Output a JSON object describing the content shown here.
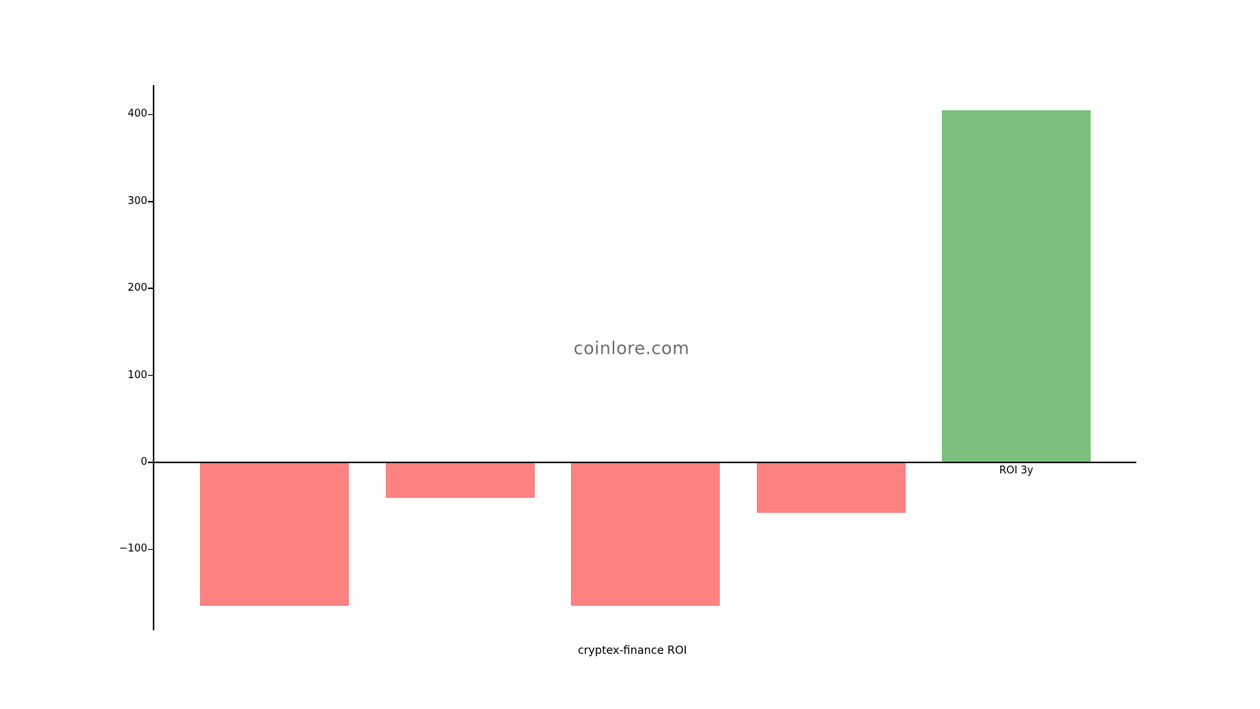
{
  "chart_data": {
    "type": "bar",
    "title": "cryptex-finance ROI",
    "watermark": "coinlore.com",
    "categories": [
      "",
      "",
      "",
      "",
      "ROI 3y"
    ],
    "values": [
      -165,
      -41,
      -165,
      -58,
      405
    ],
    "bar_colors": [
      "#fc8181",
      "#fc8181",
      "#fc8181",
      "#fc8181",
      "#7dc07d"
    ],
    "negative_color": "#fc8181",
    "positive_color": "#7dc07d",
    "yticks": [
      400,
      300,
      200,
      100,
      0,
      -100
    ],
    "ytick_labels": [
      "400",
      "300",
      "200",
      "100",
      "0",
      "−100"
    ],
    "ylim": [
      -193,
      434
    ],
    "xlabel": "",
    "ylabel": "",
    "grid": false,
    "legend_position": "none"
  }
}
